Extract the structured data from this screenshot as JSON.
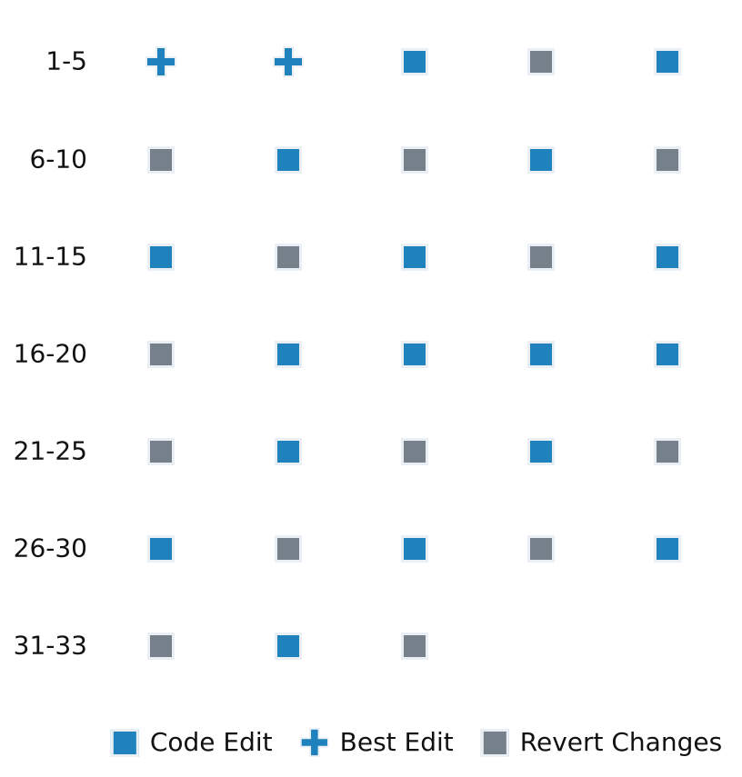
{
  "chart_data": {
    "type": "scatter",
    "title": "",
    "xlabel": "",
    "ylabel": "",
    "rows": [
      "1-5",
      "6-10",
      "11-15",
      "16-20",
      "21-25",
      "26-30",
      "31-33"
    ],
    "grid": [
      [
        "best",
        "best",
        "code",
        "revert",
        "code"
      ],
      [
        "revert",
        "code",
        "revert",
        "code",
        "revert"
      ],
      [
        "code",
        "revert",
        "code",
        "revert",
        "code"
      ],
      [
        "revert",
        "code",
        "code",
        "code",
        "code"
      ],
      [
        "revert",
        "code",
        "revert",
        "code",
        "revert"
      ],
      [
        "code",
        "revert",
        "code",
        "revert",
        "code"
      ],
      [
        "revert",
        "code",
        "revert"
      ]
    ],
    "series": {
      "code": {
        "label": "Code Edit",
        "marker": "square",
        "color": "#1f82bd"
      },
      "best": {
        "label": "Best Edit",
        "marker": "plus",
        "color": "#1f82bd"
      },
      "revert": {
        "label": "Revert Changes",
        "marker": "square",
        "color": "#76808a"
      }
    },
    "legend_order": [
      "code",
      "best",
      "revert"
    ],
    "legend_position": "bottom-center",
    "colors": {
      "marker_blue": "#1f82bd",
      "marker_gray": "#76808a",
      "marker_edge": "#e9eff5",
      "text": "#111111",
      "background": "#ffffff"
    },
    "grid_lines": "off",
    "axes": "hidden"
  }
}
